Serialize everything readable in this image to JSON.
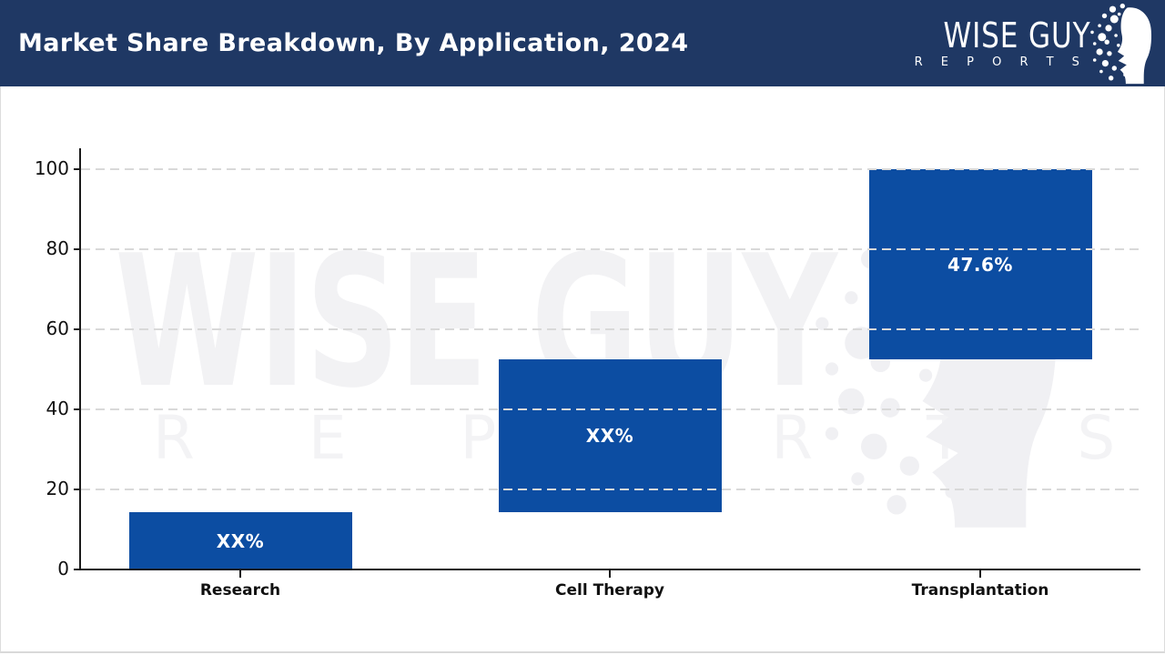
{
  "header": {
    "title": "Market Share Breakdown, By Application, 2024",
    "logo": {
      "name_line": "WISE GUY",
      "sub_line": "R E P O R T S",
      "face_icon": "dotted-face-profile"
    }
  },
  "watermark": {
    "line1": "WISE GUY",
    "line2": "R E P O R T S",
    "face_icon": "dotted-face-profile"
  },
  "colors": {
    "header_bg": "#1f3864",
    "bar": "#0c4da2",
    "grid": "#d9d9d9",
    "axis": "#1a1a1a",
    "tick_text": "#111111",
    "bar_label_text": "#ffffff",
    "watermark": "#f2f2f4"
  },
  "chart_data": {
    "type": "bar",
    "subtype": "floating-waterfall",
    "title": "Market Share Breakdown, By Application, 2024",
    "categories": [
      "Research",
      "Cell Therapy",
      "Transplantation"
    ],
    "segments": [
      {
        "category": "Research",
        "start": 0,
        "end": 14.3,
        "value_est": 14.3,
        "label": "XX%"
      },
      {
        "category": "Cell Therapy",
        "start": 14.3,
        "end": 52.4,
        "value_est": 38.1,
        "label": "XX%"
      },
      {
        "category": "Transplantation",
        "start": 52.4,
        "end": 100,
        "value_est": 47.6,
        "label": "47.6%"
      }
    ],
    "xlabel": "",
    "ylabel": "",
    "ylim": [
      0,
      100
    ],
    "yticks": [
      0,
      20,
      40,
      60,
      80,
      100
    ],
    "grid": "horizontal-dashed",
    "grid_above_bars": true,
    "legend": "none",
    "bar_color": "#0c4da2",
    "bar_label_color": "#ffffff"
  }
}
